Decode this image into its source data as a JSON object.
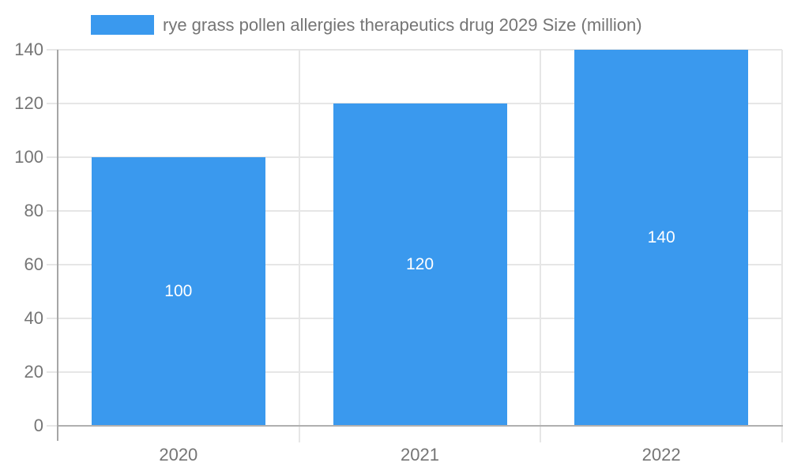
{
  "chart_data": {
    "type": "bar",
    "title": "",
    "legend": {
      "label": "rye grass pollen allergies therapeutics drug 2029 Size (million)",
      "position": "top"
    },
    "categories": [
      "2020",
      "2021",
      "2022"
    ],
    "series": [
      {
        "name": "rye grass pollen allergies therapeutics drug 2029 Size (million)",
        "values": [
          100,
          120,
          140
        ]
      }
    ],
    "bar_labels": [
      "100",
      "120",
      "140"
    ],
    "xlabel": "",
    "ylabel": "",
    "yticks": [
      0,
      20,
      40,
      60,
      80,
      100,
      120,
      140
    ],
    "ylim": [
      0,
      140
    ],
    "grid": true,
    "legend_position": "top",
    "colors": {
      "bar": "#3a99ee",
      "text": "#757575",
      "grid": "#e6e6e6",
      "axis": "#a6a6a6",
      "baseline": "#b0b0b0",
      "bar_label": "#ffffff",
      "background": "#ffffff"
    }
  }
}
